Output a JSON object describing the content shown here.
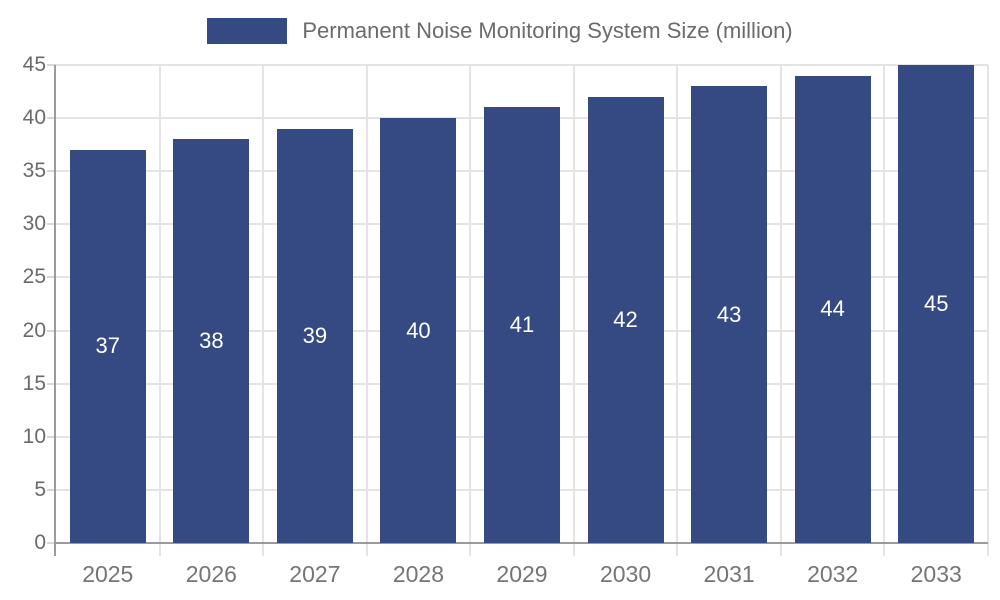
{
  "legend": {
    "label": "Permanent Noise Monitoring System Size (million)"
  },
  "chart_data": {
    "type": "bar",
    "title": "Permanent Noise Monitoring System Size (million)",
    "categories": [
      "2025",
      "2026",
      "2027",
      "2028",
      "2029",
      "2030",
      "2031",
      "2032",
      "2033"
    ],
    "values": [
      37,
      38,
      39,
      40,
      41,
      42,
      43,
      44,
      45
    ],
    "series": [
      {
        "name": "Permanent Noise Monitoring System Size (million)",
        "values": [
          37,
          38,
          39,
          40,
          41,
          42,
          43,
          44,
          45
        ]
      }
    ],
    "xlabel": "",
    "ylabel": "",
    "ylim": [
      0,
      45
    ],
    "ytick_step": 5,
    "ytick_labels": [
      "0",
      "5",
      "10",
      "15",
      "20",
      "25",
      "30",
      "35",
      "40",
      "45"
    ],
    "grid": true,
    "legend_position": "top",
    "value_labels": "inside-center",
    "colors": {
      "bar": "#354a82",
      "value_label": "#ffffff",
      "gridline": "#e4e4e8",
      "axis": "#9b9b9b",
      "tick": "#d8d8dc",
      "tick_text": "#6a6a6a",
      "legend_text": "#6b6b6b"
    }
  }
}
